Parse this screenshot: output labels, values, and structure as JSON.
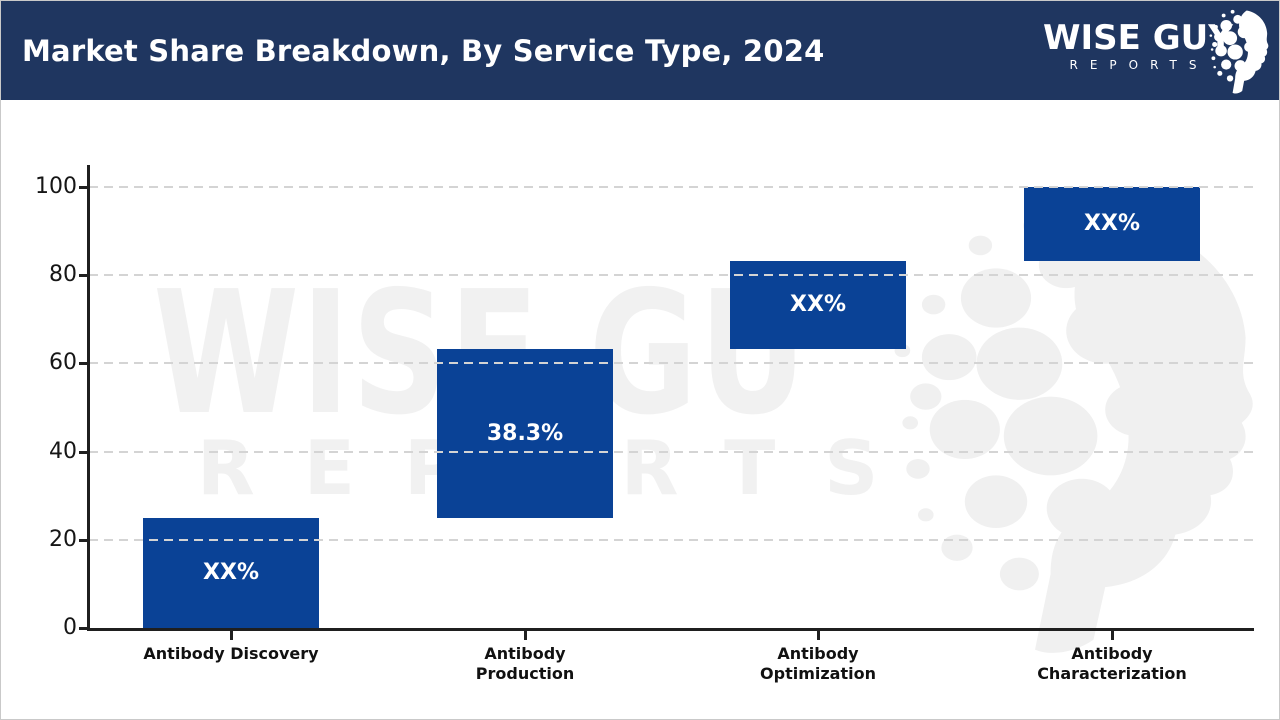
{
  "header": {
    "title": "Market Share Breakdown, By Service Type, 2024",
    "background_color": "#1f3660",
    "logo": {
      "name": "WISE GUY",
      "subtitle": "REPORTS",
      "head_icon": "dotted-head-profile"
    }
  },
  "watermark": {
    "line1": "WISE GU",
    "line2": "REPORTS",
    "head_icon": "dotted-head-profile"
  },
  "chart_data": {
    "type": "bar",
    "variant": "floating-waterfall",
    "title": "Market Share Breakdown, By Service Type, 2024",
    "categories": [
      "Antibody Discovery",
      "Antibody Production",
      "Antibody Optimization",
      "Antibody Characterization"
    ],
    "category_tick_labels": [
      "Antibody Discovery",
      "Antibody\nProduction",
      "Antibody\nOptimization",
      "Antibody\nCharacterization"
    ],
    "segments": [
      {
        "category": "Antibody Discovery",
        "start": 0,
        "end": 25,
        "height": 25,
        "value_label": "XX%"
      },
      {
        "category": "Antibody Production",
        "start": 25,
        "end": 63.3,
        "height": 38.3,
        "value_label": "38.3%"
      },
      {
        "category": "Antibody Optimization",
        "start": 63.3,
        "end": 83.3,
        "height": 20,
        "value_label": "XX%"
      },
      {
        "category": "Antibody Characterization",
        "start": 83.3,
        "end": 100,
        "height": 16.7,
        "value_label": "XX%"
      }
    ],
    "xlabel": "",
    "ylabel": "",
    "ylim": [
      0,
      100
    ],
    "yticks": [
      0,
      20,
      40,
      60,
      80,
      100
    ],
    "grid": {
      "axis": "y",
      "style": "dashed",
      "color": "#d4d4d4",
      "above_bars": true
    },
    "legend": null,
    "bar_color": "#0a4296",
    "bar_label_color": "#ffffff",
    "axis_color": "#1f1f1f",
    "tick_label_color": "#161616"
  }
}
